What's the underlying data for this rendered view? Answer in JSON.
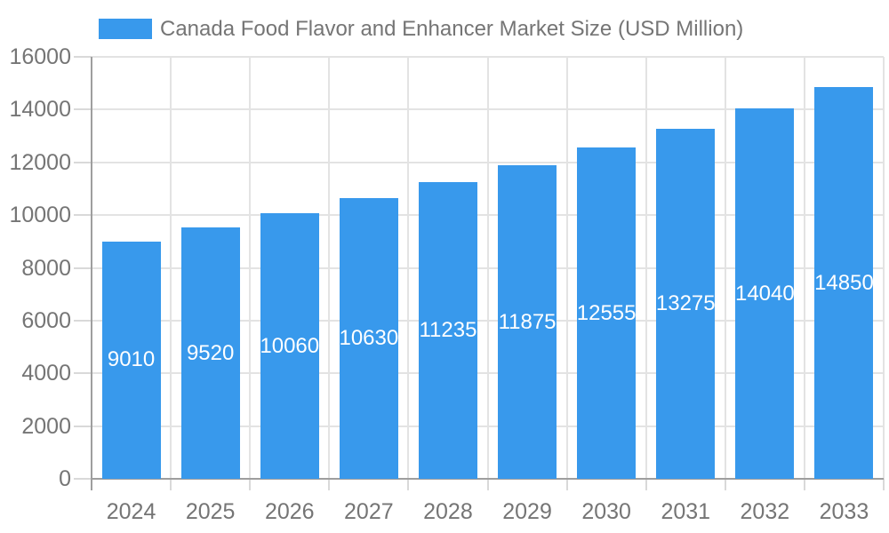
{
  "chart_data": {
    "type": "bar",
    "title": "Canada Food Flavor and Enhancer Market Size (USD Million)",
    "categories": [
      "2024",
      "2025",
      "2026",
      "2027",
      "2028",
      "2029",
      "2030",
      "2031",
      "2032",
      "2033"
    ],
    "values": [
      9010,
      9520,
      10060,
      10630,
      11235,
      11875,
      12555,
      13275,
      14040,
      14850
    ],
    "xlabel": "",
    "ylabel": "",
    "ylim": [
      0,
      16000
    ],
    "ytick_step": 2000,
    "ytick_labels": [
      "0",
      "2000",
      "4000",
      "6000",
      "8000",
      "10000",
      "12000",
      "14000",
      "16000"
    ],
    "grid": "on",
    "legend_position": "top",
    "bar_value_labels": [
      "9010",
      "9520",
      "10060",
      "10630",
      "11235",
      "11875",
      "12555",
      "13275",
      "14040",
      "14850"
    ]
  },
  "legend": {
    "label": "Canada Food Flavor and Enhancer Market Size (USD Million)"
  },
  "colors": {
    "bar": "#3899EC",
    "bar_label_text": "#FFFFFF",
    "axis_text": "#757575",
    "legend_text": "#757575",
    "gridline": "#E3E3E3",
    "tick": "#D9D9D9",
    "axis_line": "#9E9E9E",
    "background": "#FFFFFF"
  }
}
